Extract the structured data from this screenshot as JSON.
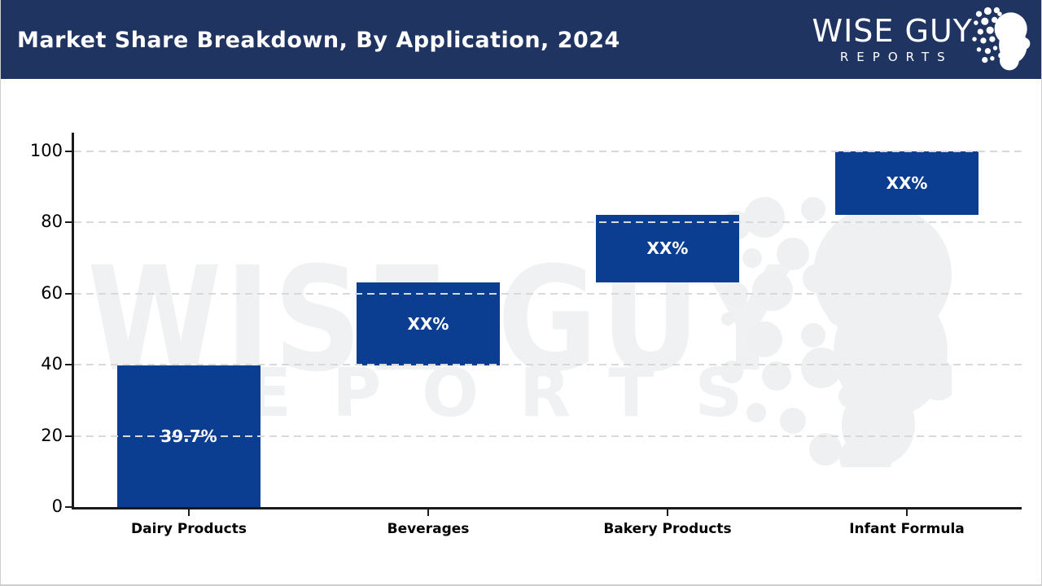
{
  "header": {
    "title": "Market Share Breakdown, By Application, 2024",
    "logo": {
      "line1": "WISE GUY",
      "line2": "REPORTS"
    }
  },
  "watermark": {
    "line1": "WISE GUY",
    "line2": "REPORTS"
  },
  "colors": {
    "header_bg": "#1f3461",
    "bar": "#0b3d91",
    "grid": "#d9d9d9",
    "axis": "#1a1a1a",
    "watermark": "#f0f1f3",
    "bar_label": "#ffffff"
  },
  "chart_data": {
    "type": "bar",
    "subtype": "waterfall",
    "title": "Market Share Breakdown, By Application, 2024",
    "categories": [
      "Dairy Products",
      "Beverages",
      "Bakery Products",
      "Infant Formula"
    ],
    "segments": [
      {
        "category": "Dairy Products",
        "label": "39.7%",
        "start": 0,
        "end": 39.7
      },
      {
        "category": "Beverages",
        "label": "XX%",
        "start": 39.7,
        "end": 63.2
      },
      {
        "category": "Bakery Products",
        "label": "XX%",
        "start": 63.2,
        "end": 82.1
      },
      {
        "category": "Infant Formula",
        "label": "XX%",
        "start": 82.1,
        "end": 100
      }
    ],
    "yticks": [
      0,
      20,
      40,
      60,
      80,
      100
    ],
    "ylim": [
      0,
      105.5
    ],
    "grid": "dashed-horizontal-on-top",
    "legend": "none"
  }
}
